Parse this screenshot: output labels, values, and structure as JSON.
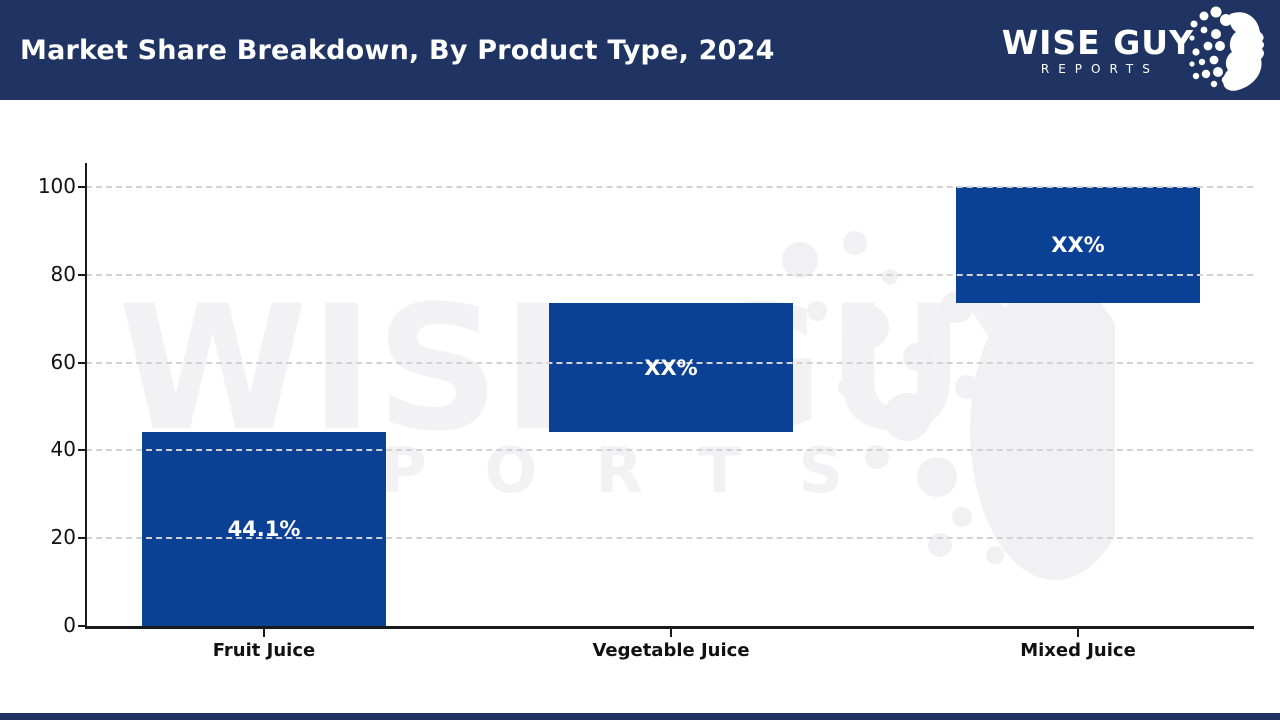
{
  "header": {
    "title": "Market Share Breakdown, By Product Type, 2024",
    "logo": {
      "line1": "WISE GUY",
      "line2": "REPORTS"
    }
  },
  "watermark": {
    "line1": "WISE GUY",
    "line2": "REPORTS"
  },
  "colors": {
    "header_navy": "#1f3462",
    "bar_blue": "#0a4195",
    "grid_gray": "#d2d2d2",
    "axis_black": "#1a1a1a",
    "watermark_gray": "#f2f2f4"
  },
  "chart_data": {
    "type": "bar",
    "subtype": "floating-waterfall",
    "title": "Market Share Breakdown, By Product Type, 2024",
    "categories": [
      "Fruit Juice",
      "Vegetable Juice",
      "Mixed Juice"
    ],
    "segments": [
      {
        "category": "Fruit Juice",
        "start": 0,
        "end": 44.1,
        "label": "44.1%"
      },
      {
        "category": "Vegetable Juice",
        "start": 44.1,
        "end": 73.6,
        "label": "XX%"
      },
      {
        "category": "Mixed Juice",
        "start": 73.6,
        "end": 100,
        "label": "XX%"
      }
    ],
    "xlabel": "",
    "ylabel": "",
    "ylim": [
      0,
      100
    ],
    "yticks": [
      0,
      20,
      40,
      60,
      80,
      100
    ],
    "grid": "dashed horizontal, drawn above bars",
    "legend": "none",
    "bar_color": "#0a4195",
    "value_label_color": "#ffffff"
  }
}
